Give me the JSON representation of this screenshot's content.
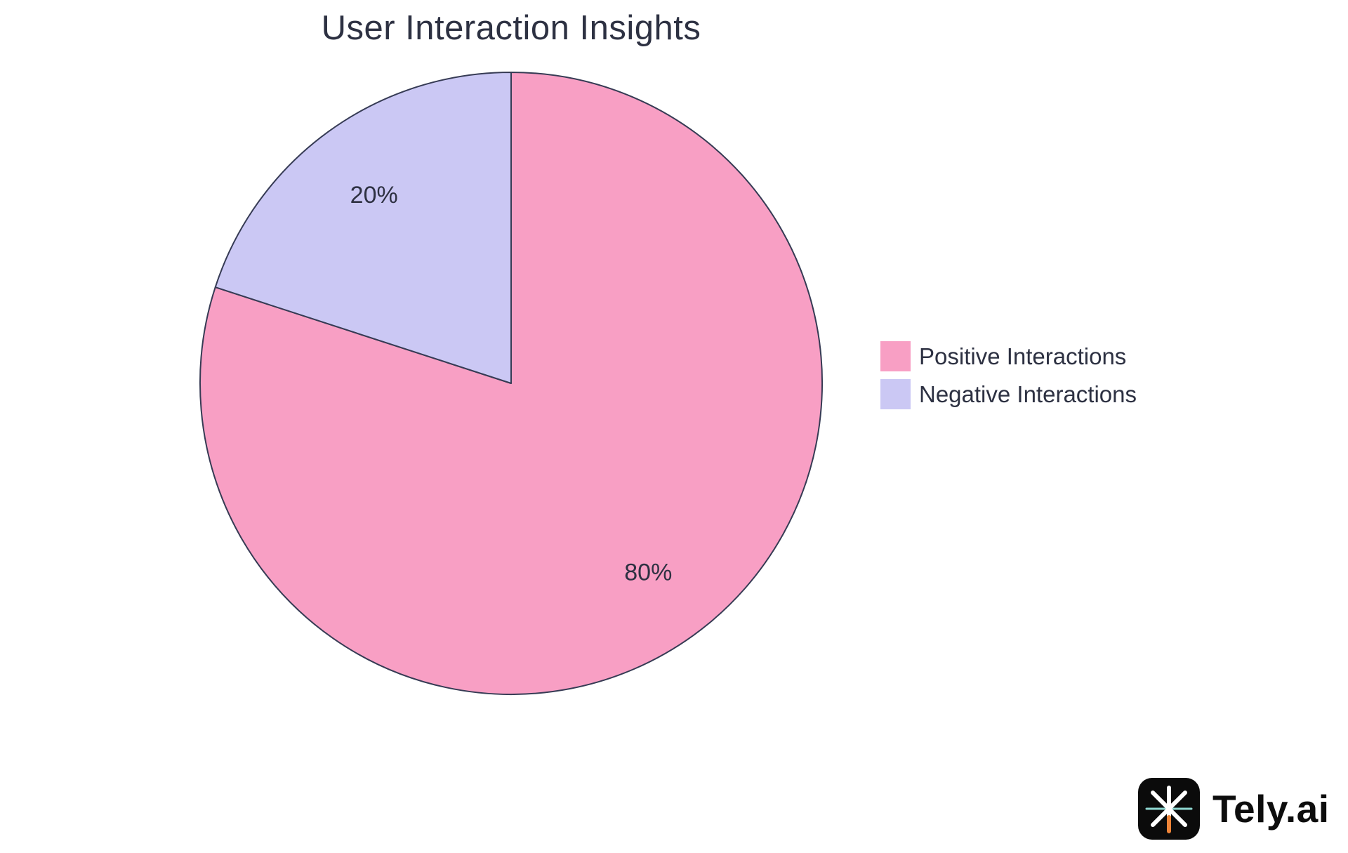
{
  "chart_data": {
    "type": "pie",
    "title": "User Interaction Insights",
    "slices": [
      {
        "label": "Positive Interactions",
        "value": 80,
        "display": "80%",
        "color": "#F89FC4"
      },
      {
        "label": "Negative Interactions",
        "value": 20,
        "display": "20%",
        "color": "#CBC8F4"
      }
    ],
    "start_angle_deg": 90,
    "direction": "clockwise",
    "legend_position": "right",
    "outline_color": "#363B54",
    "label_color": "#2E3142",
    "label_font_size": 34
  },
  "branding": {
    "logo_text": "Tely.ai",
    "logo_icon": "starburst-icon",
    "icon_bg": "#0B0B0B",
    "icon_spoke_white": "#FFFFFF",
    "icon_accent_orange": "#EE8438",
    "icon_accent_teal": "#8FD8D2"
  }
}
